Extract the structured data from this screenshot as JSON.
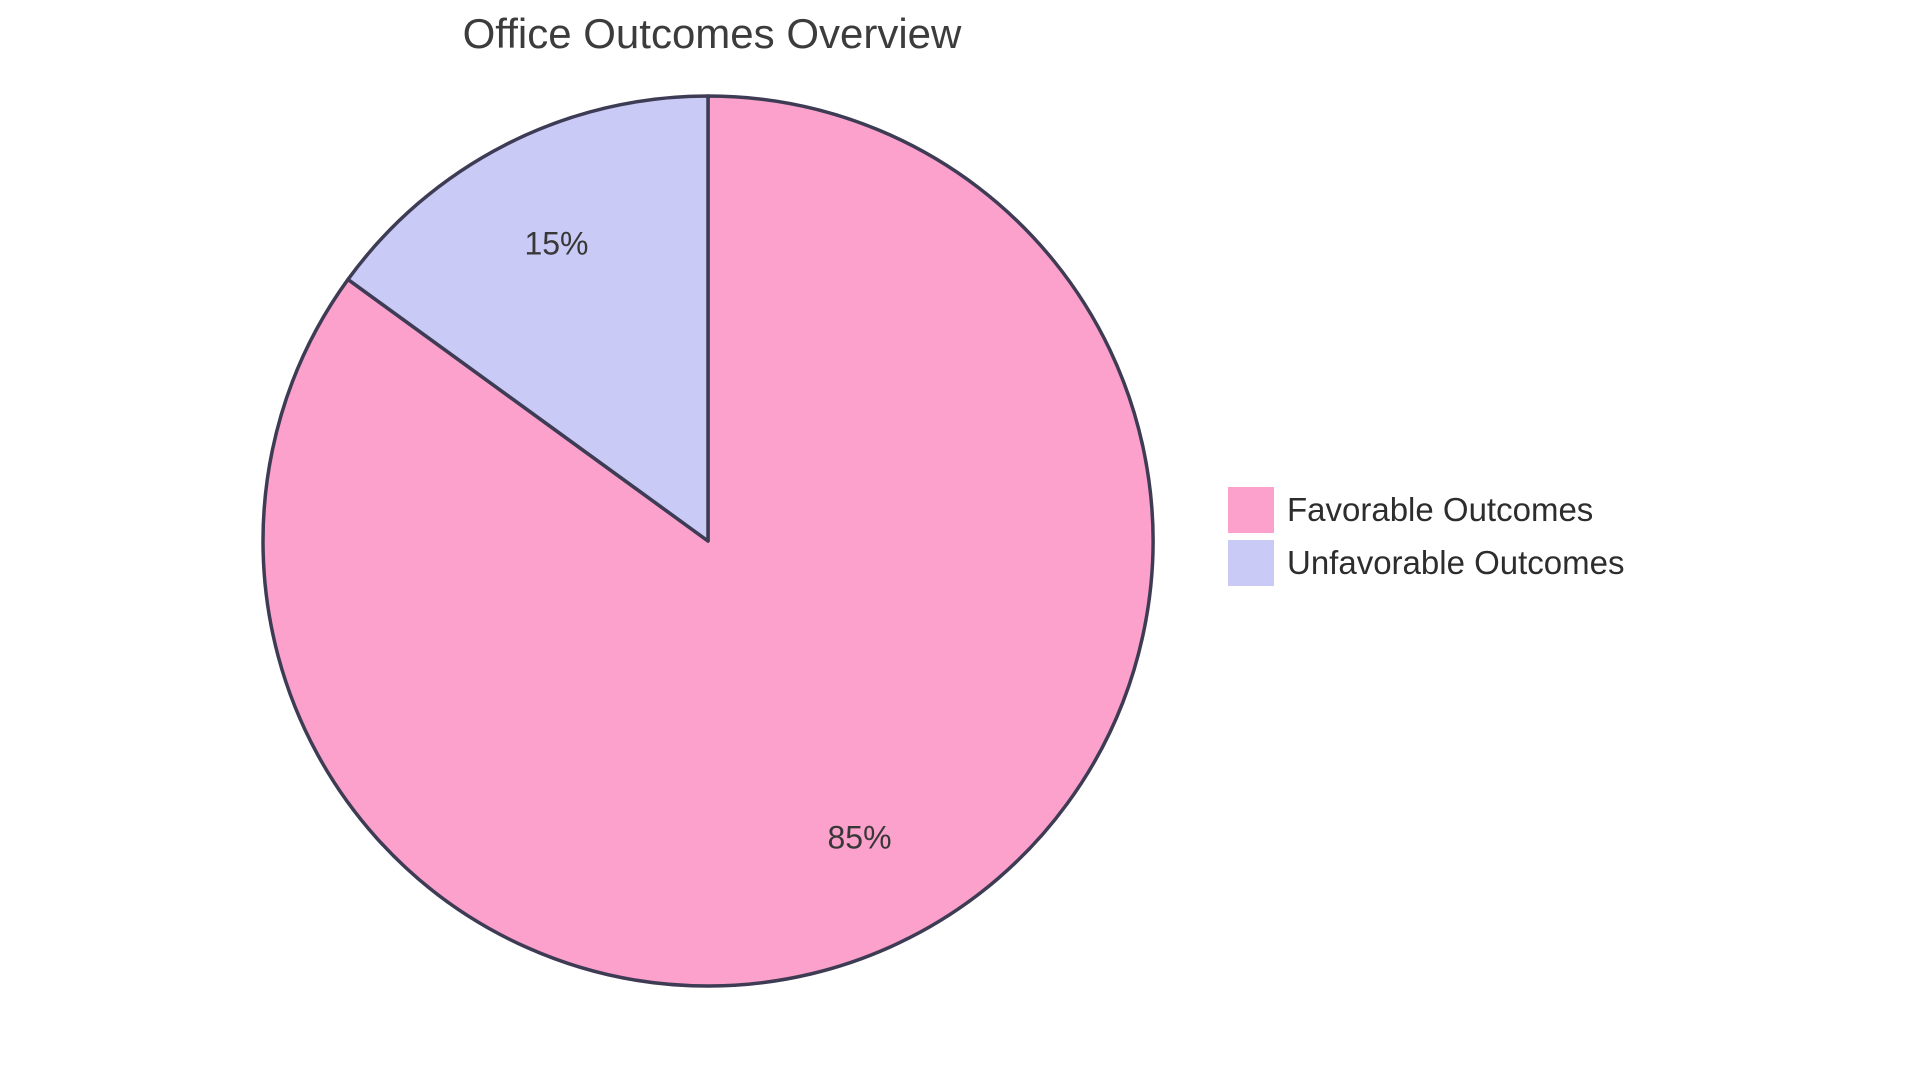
{
  "title": "Office Outcomes Overview",
  "chart_data": {
    "type": "pie",
    "title": "Office Outcomes Overview",
    "slices": [
      {
        "label": "Favorable Outcomes",
        "value": 85,
        "pct_label": "85%",
        "color": "#FBA1CB"
      },
      {
        "label": "Unfavorable Outcomes",
        "value": 15,
        "pct_label": "15%",
        "color": "#C9CAF5"
      }
    ],
    "start_angle_deg": 0,
    "direction": "clockwise",
    "border_color": "#3E3C55",
    "border_width": 3.5,
    "legend_position": "right",
    "labels_inside": true,
    "label_color": "#383838",
    "background": "#ffffff"
  }
}
